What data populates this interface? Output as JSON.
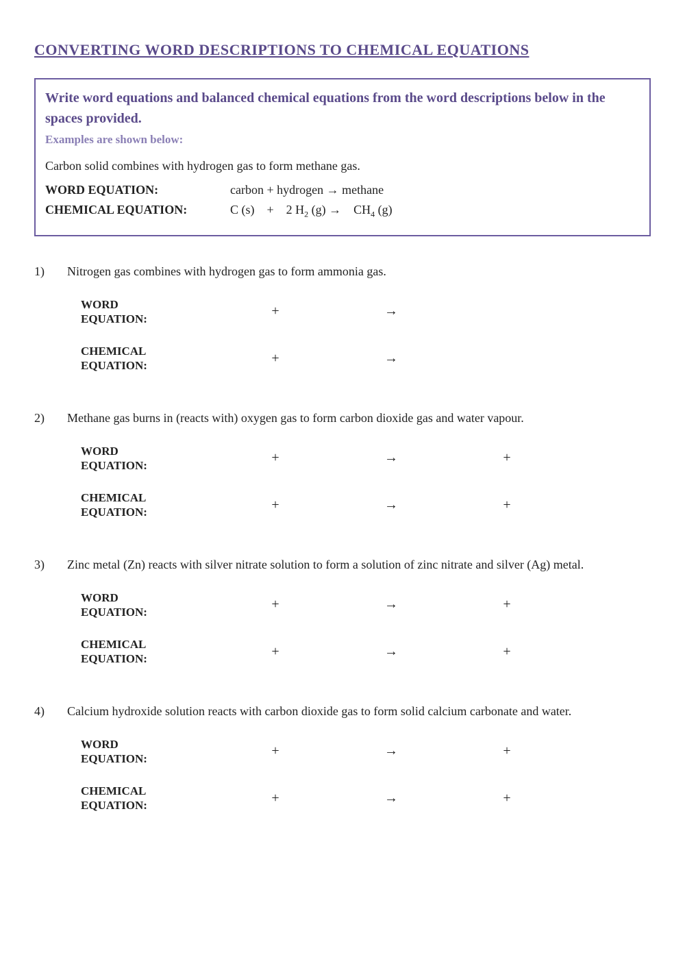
{
  "colors": {
    "accent": "#5a4a8a",
    "accent_light": "#8a7fb5",
    "box_border": "#6b5ca0",
    "text": "#222222",
    "background": "#ffffff"
  },
  "typography": {
    "title_fontsize": 22,
    "body_fontsize": 18,
    "family": "Palatino Linotype"
  },
  "title": "CONVERTING WORD DESCRIPTIONS TO CHEMICAL EQUATIONS",
  "example_box": {
    "instructions": "Write word equations and balanced chemical equations from the word descriptions below in the spaces provided.",
    "hint": "Examples are shown below:",
    "statement": "Carbon solid combines with hydrogen gas to form methane gas.",
    "word_label": "WORD EQUATION:",
    "chem_label": "CHEMICAL EQUATION:",
    "word_equation": "carbon + hydrogen → methane",
    "chem_equation_html": "C (s) + 2 H<span class=\"sub\">2</span> (g) → CH<span class=\"sub\">4</span> (g)"
  },
  "labels": {
    "word_line1": "WORD",
    "word_line2": "EQUATION:",
    "chem_line1": "CHEMICAL",
    "chem_line2": "EQUATION:",
    "plus": "+",
    "arrow": "→"
  },
  "questions": [
    {
      "num": "1)",
      "text": "Nitrogen gas combines with hydrogen gas to form ammonia gas.",
      "products": 1
    },
    {
      "num": "2)",
      "text": "Methane gas burns in (reacts with) oxygen gas to form carbon dioxide gas and water vapour.",
      "products": 2
    },
    {
      "num": "3)",
      "text": "Zinc metal (Zn) reacts with silver nitrate solution to form a solution of zinc nitrate and silver (Ag) metal.",
      "products": 2
    },
    {
      "num": "4)",
      "text": "Calcium hydroxide solution reacts with carbon dioxide gas to form solid calcium carbonate and water.",
      "products": 2
    }
  ]
}
